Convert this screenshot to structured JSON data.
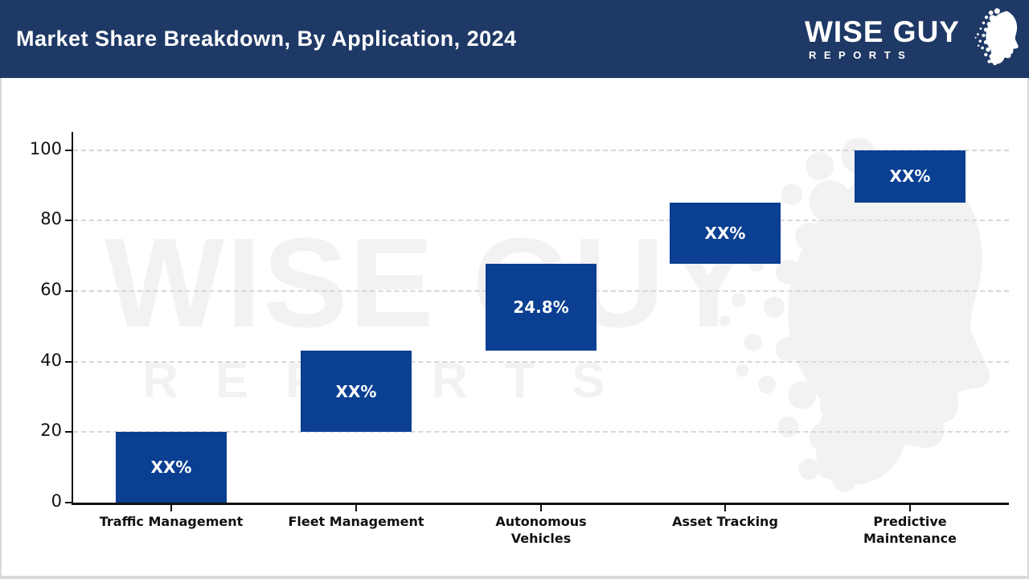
{
  "header": {
    "title": "Market Share Breakdown, By Application, 2024",
    "logo": {
      "line1": "WISE GUY",
      "line2": "REPORTS"
    }
  },
  "watermark": {
    "line1": "WISE GUY",
    "line2": "REPORTS"
  },
  "colors": {
    "header_bg": "#1F3966",
    "bar": "#0A3F92",
    "grid": "#d8d8d8",
    "axis": "#111111",
    "bar_label_text": "#ffffff",
    "watermark": "#f2f2f3",
    "page_border": "#d9d9d9"
  },
  "chart_data": {
    "type": "bar",
    "subtype": "waterfall",
    "title": "Market Share Breakdown, By Application, 2024",
    "xlabel": "",
    "ylabel": "",
    "categories": [
      "Traffic Management",
      "Fleet Management",
      "Autonomous\nVehicles",
      "Asset Tracking",
      "Predictive\nMaintenance"
    ],
    "segments": [
      {
        "category": "Traffic Management",
        "start": 0,
        "end": 20,
        "label": "XX%"
      },
      {
        "category": "Fleet Management",
        "start": 20,
        "end": 43,
        "label": "XX%"
      },
      {
        "category": "Autonomous Vehicles",
        "start": 43,
        "end": 67.8,
        "label": "24.8%"
      },
      {
        "category": "Asset Tracking",
        "start": 67.8,
        "end": 85,
        "label": "XX%"
      },
      {
        "category": "Predictive Maintenance",
        "start": 85,
        "end": 100,
        "label": "XX%"
      }
    ],
    "yticks": [
      0,
      20,
      40,
      60,
      80,
      100
    ],
    "ylim": [
      0,
      105
    ],
    "grid": "horizontal-dashed",
    "legend": "none"
  }
}
